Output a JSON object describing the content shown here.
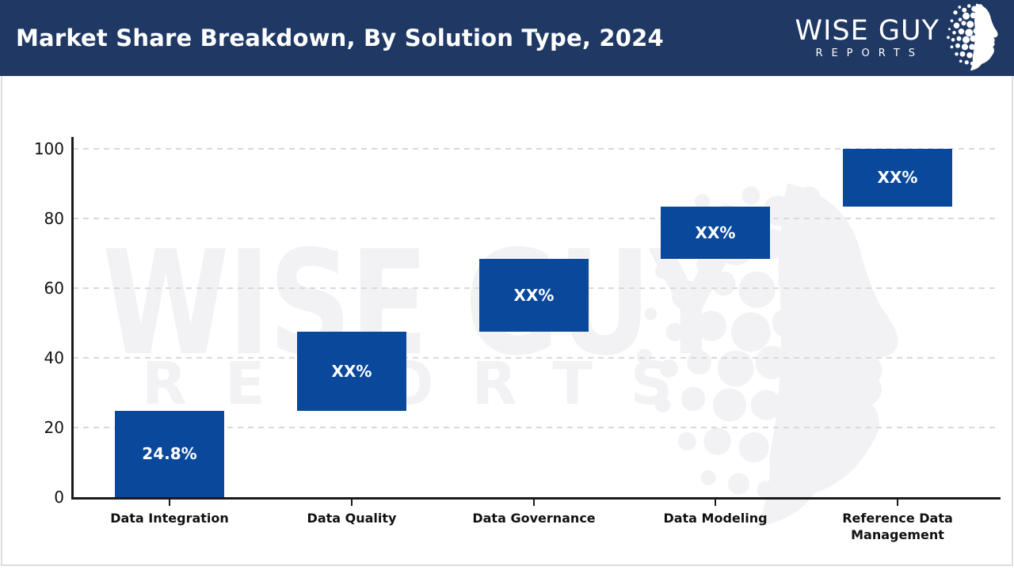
{
  "header": {
    "title": "Market Share Breakdown, By Solution Type, 2024",
    "logo": {
      "line1": "WISE GUY",
      "line2": "REPORTS",
      "icon": "face-dots-logo"
    }
  },
  "watermark": {
    "line1": "WISE GUY",
    "line2": "REPORTS",
    "icon": "face-dots-watermark"
  },
  "chart_data": {
    "type": "bar",
    "subtype": "waterfall",
    "title": "Market Share Breakdown, By Solution Type, 2024",
    "categories": [
      "Data Integration",
      "Data Quality",
      "Data Governance",
      "Data Modeling",
      "Reference Data Management"
    ],
    "segments": [
      {
        "category": "Data Integration",
        "start": 0,
        "end": 24.8,
        "label": "24.8%"
      },
      {
        "category": "Data Quality",
        "start": 24.8,
        "end": 47.5,
        "label": "XX%"
      },
      {
        "category": "Data Governance",
        "start": 47.5,
        "end": 68.5,
        "label": "XX%"
      },
      {
        "category": "Data Modeling",
        "start": 68.5,
        "end": 83.5,
        "label": "XX%"
      },
      {
        "category": "Reference Data Management",
        "start": 83.5,
        "end": 100,
        "label": "XX%"
      }
    ],
    "yticks": [
      0,
      20,
      40,
      60,
      80,
      100
    ],
    "ylim": [
      0,
      105
    ],
    "grid": "dashed-horizontal",
    "legend": "none",
    "bar_color": "#0a489b",
    "bar_label_color": "#ffffff"
  },
  "colors": {
    "header_bg": "#1f3864",
    "bar": "#0a489b",
    "grid": "#d9d9d9",
    "axis": "#1a1a1a",
    "text": "#111111",
    "watermark": "#f2f2f4",
    "card_border": "#dcdcdc"
  }
}
